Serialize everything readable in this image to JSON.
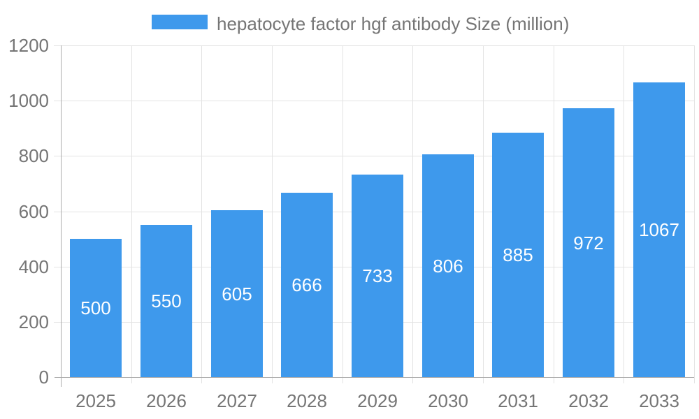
{
  "legend": {
    "label": "hepatocyte factor hgf antibody Size (million)"
  },
  "chart_data": {
    "type": "bar",
    "title": "hepatocyte factor hgf antibody Size (million)",
    "categories": [
      "2025",
      "2026",
      "2027",
      "2028",
      "2029",
      "2030",
      "2031",
      "2032",
      "2033"
    ],
    "values": [
      500,
      550,
      605,
      666,
      733,
      806,
      885,
      972,
      1067
    ],
    "xlabel": "",
    "ylabel": "",
    "ylim": [
      0,
      1200
    ],
    "yticks": [
      0,
      200,
      400,
      600,
      800,
      1000,
      1200
    ],
    "grid": true,
    "legend_position": "top",
    "value_labels": "inside-center",
    "colors": {
      "bar": "#3E99EC",
      "text": "#757575",
      "axis_line": "#ababab",
      "grid_line": "#e3e3e3",
      "value_label": "#ffffff"
    }
  }
}
